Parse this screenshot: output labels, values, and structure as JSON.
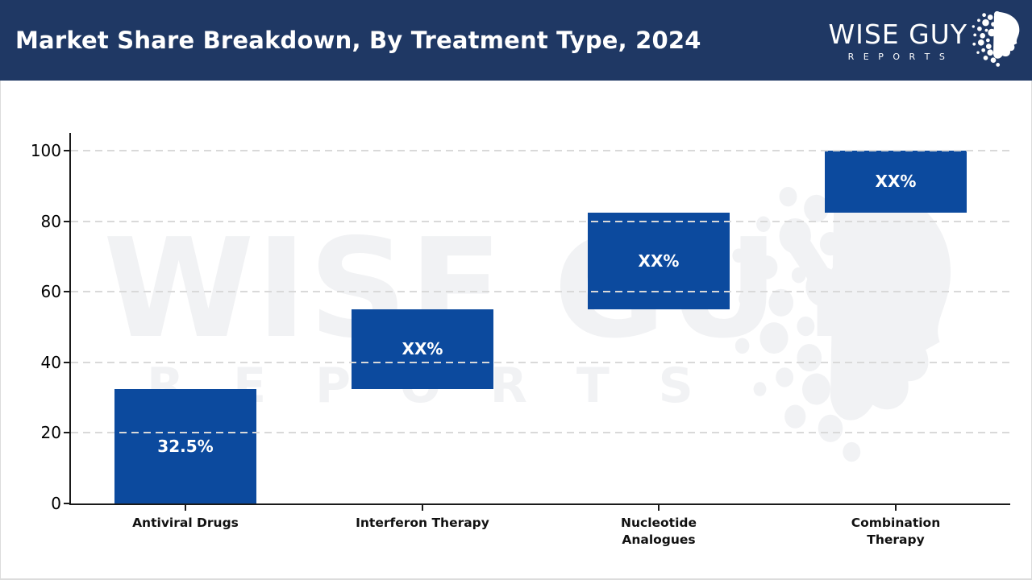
{
  "header": {
    "title": "Market Share Breakdown, By Treatment Type, 2024",
    "logo": {
      "brand": "WISE GUY",
      "sub": "R E P O R T S"
    }
  },
  "watermark": {
    "brand": "WISE GUY",
    "sub": "R E P O R T S"
  },
  "chart_data": {
    "type": "bar",
    "variant": "floating-waterfall",
    "title": "Market Share Breakdown, By Treatment Type, 2024",
    "categories": [
      "Antiviral Drugs",
      "Interferon Therapy",
      "Nucleotide Analogues",
      "Combination Therapy"
    ],
    "category_label_lines": [
      [
        "Antiviral Drugs"
      ],
      [
        "Interferon Therapy"
      ],
      [
        "Nucleotide",
        "Analogues"
      ],
      [
        "Combination",
        "Therapy"
      ]
    ],
    "series": [
      {
        "name": "Market share (%)",
        "bars": [
          {
            "category": "Antiviral Drugs",
            "start": 0,
            "end": 32.5,
            "label": "32.5%"
          },
          {
            "category": "Interferon Therapy",
            "start": 32.5,
            "end": 55,
            "label": "XX%"
          },
          {
            "category": "Nucleotide Analogues",
            "start": 55,
            "end": 82.5,
            "label": "XX%"
          },
          {
            "category": "Combination Therapy",
            "start": 82.5,
            "end": 100,
            "label": "XX%"
          }
        ]
      }
    ],
    "xlabel": "",
    "ylabel": "",
    "ylim": [
      0,
      100
    ],
    "yticks": [
      0,
      20,
      40,
      60,
      80,
      100
    ],
    "grid": {
      "horizontal": true,
      "style": "dashed",
      "color": "#d9d9d9"
    },
    "legend": "none",
    "bar_color": "#0c4a9e",
    "bar_label_color": "#ffffff"
  },
  "colors": {
    "header_bg": "#1f3864",
    "bar_fill": "#0c4a9e",
    "axis": "#1a1a1a",
    "grid": "#d9d9d9",
    "watermark": "#f1f2f4",
    "page_bg": "#ffffff"
  }
}
